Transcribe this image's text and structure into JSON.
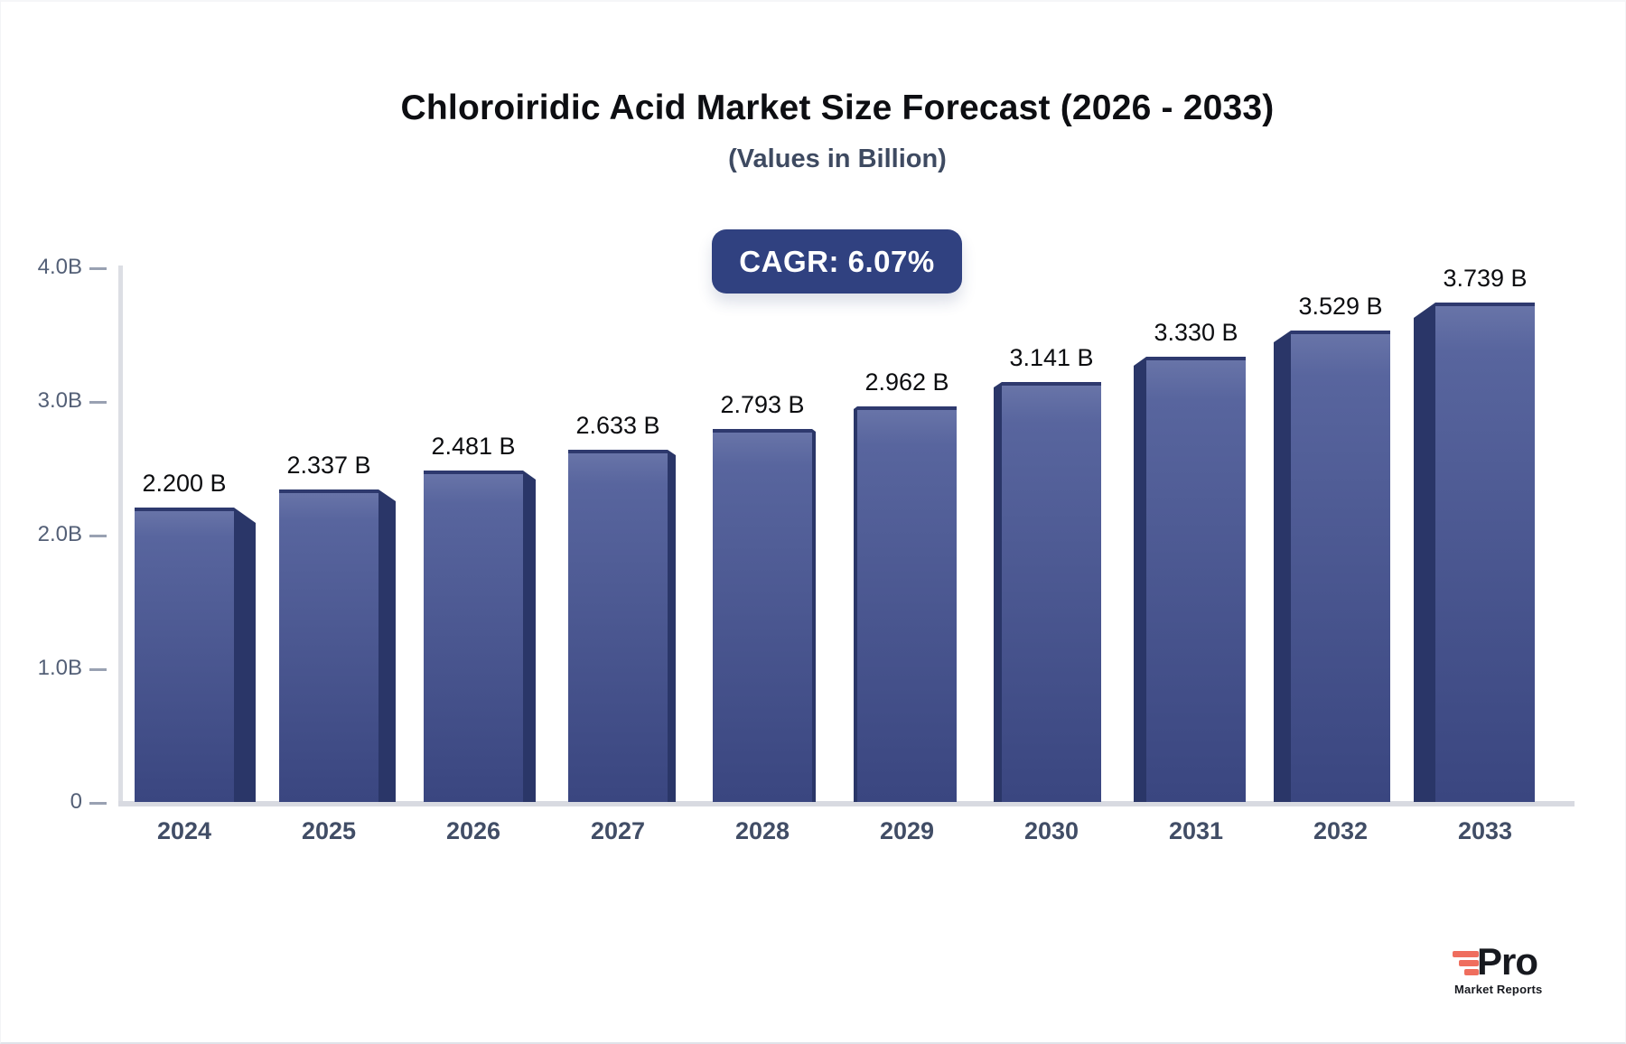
{
  "header": {
    "title": "Chloroiridic Acid Market Size Forecast (2026 - 2033)",
    "subtitle": "(Values in Billion)"
  },
  "badge": {
    "label": "CAGR: 6.07%",
    "bg": "#304180",
    "text_color": "#ffffff"
  },
  "chart_data": {
    "type": "bar",
    "title": "Chloroiridic Acid Market Size Forecast (2026 - 2033)",
    "subtitle": "(Values in Billion)",
    "categories": [
      "2024",
      "2025",
      "2026",
      "2027",
      "2028",
      "2029",
      "2030",
      "2031",
      "2032",
      "2033"
    ],
    "values": [
      2.2,
      2.337,
      2.481,
      2.633,
      2.793,
      2.962,
      3.141,
      3.33,
      3.529,
      3.739
    ],
    "value_labels": [
      "2.200 B",
      "2.337 B",
      "2.481 B",
      "2.633 B",
      "2.793 B",
      "2.962 B",
      "3.141 B",
      "3.330 B",
      "3.529 B",
      "3.739 B"
    ],
    "xlabel": "",
    "ylabel": "",
    "ylim": [
      0,
      4.0
    ],
    "yticks": [
      {
        "value": 0,
        "label": "0"
      },
      {
        "value": 1.0,
        "label": "1.0B"
      },
      {
        "value": 2.0,
        "label": "2.0B"
      },
      {
        "value": 3.0,
        "label": "3.0B"
      },
      {
        "value": 4.0,
        "label": "4.0B"
      }
    ],
    "grid": false,
    "legend": "none",
    "style_3d": true,
    "colors": {
      "bar_top": "#6874a8",
      "bar_mid": "#58659e",
      "bar_bottom": "#3a4680",
      "bar_side": "#2a3668",
      "bar_cap": "rgba(20,30,70,0.30)",
      "axis_line": "#dcdee4",
      "baseline": "#d8dae1",
      "tick_dash": "#99a1b2"
    }
  },
  "logo": {
    "name": "Pro",
    "tagline": "Market Reports",
    "accent": "#ef6e5e"
  }
}
